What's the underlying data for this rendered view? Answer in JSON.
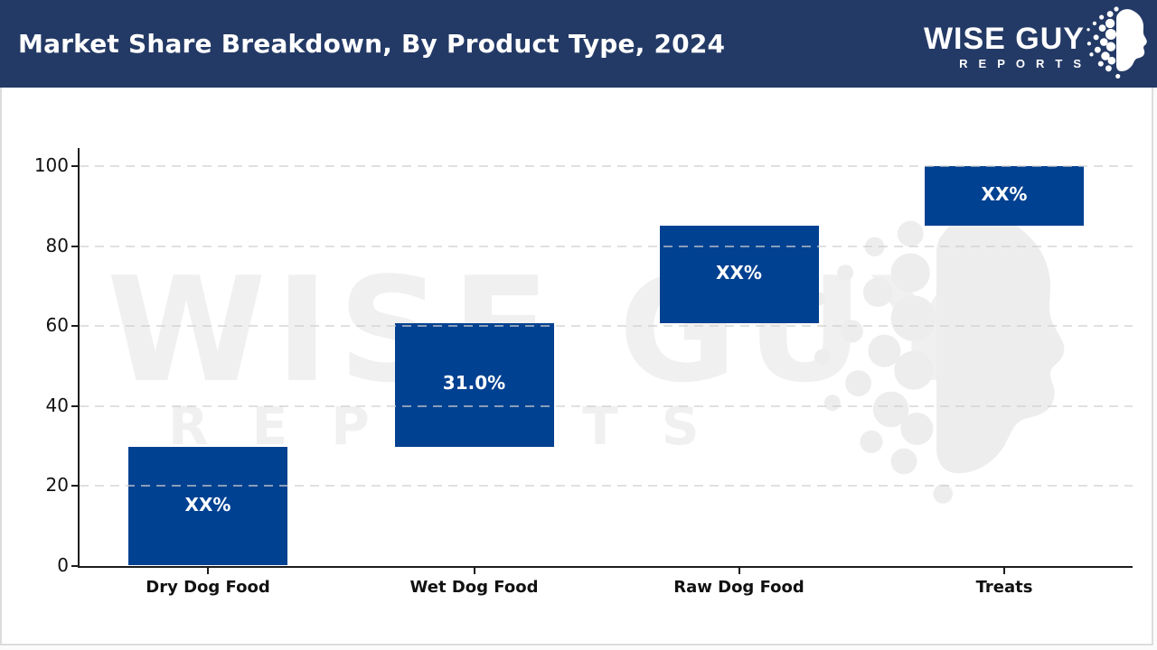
{
  "header": {
    "title": "Market Share Breakdown, By Product Type, 2024",
    "logo": {
      "wordmark": "WISE GUY",
      "subtitle": "REPORTS"
    }
  },
  "watermark": {
    "wordmark": "WISE GUY",
    "subtitle": "REPORTS"
  },
  "colors": {
    "header_bg": "#243a66",
    "bar": "#014191",
    "bar_label": "#ffffff",
    "axis": "#1c1c1c",
    "gridline": "#e0e0e0",
    "watermark": "#f0f0f0"
  },
  "chart_data": {
    "type": "bar",
    "subtype": "floating-waterfall",
    "title": "Market Share Breakdown, By Product Type, 2024",
    "categories": [
      "Dry Dog Food",
      "Wet Dog Food",
      "Raw Dog Food",
      "Treats"
    ],
    "segments": [
      {
        "category": "Dry Dog Food",
        "start": 0,
        "end": 29.7,
        "value_label": "XX%"
      },
      {
        "category": "Wet Dog Food",
        "start": 29.7,
        "end": 60.7,
        "value_label": "31.0%"
      },
      {
        "category": "Raw Dog Food",
        "start": 60.7,
        "end": 85,
        "value_label": "XX%"
      },
      {
        "category": "Treats",
        "start": 85,
        "end": 100,
        "value_label": "XX%"
      }
    ],
    "y_ticks": [
      0,
      20,
      40,
      60,
      80,
      100
    ],
    "ylim": [
      0,
      104.5
    ],
    "xlabel": "",
    "ylabel": "",
    "legend": "none",
    "grid": "horizontal-dashed"
  }
}
